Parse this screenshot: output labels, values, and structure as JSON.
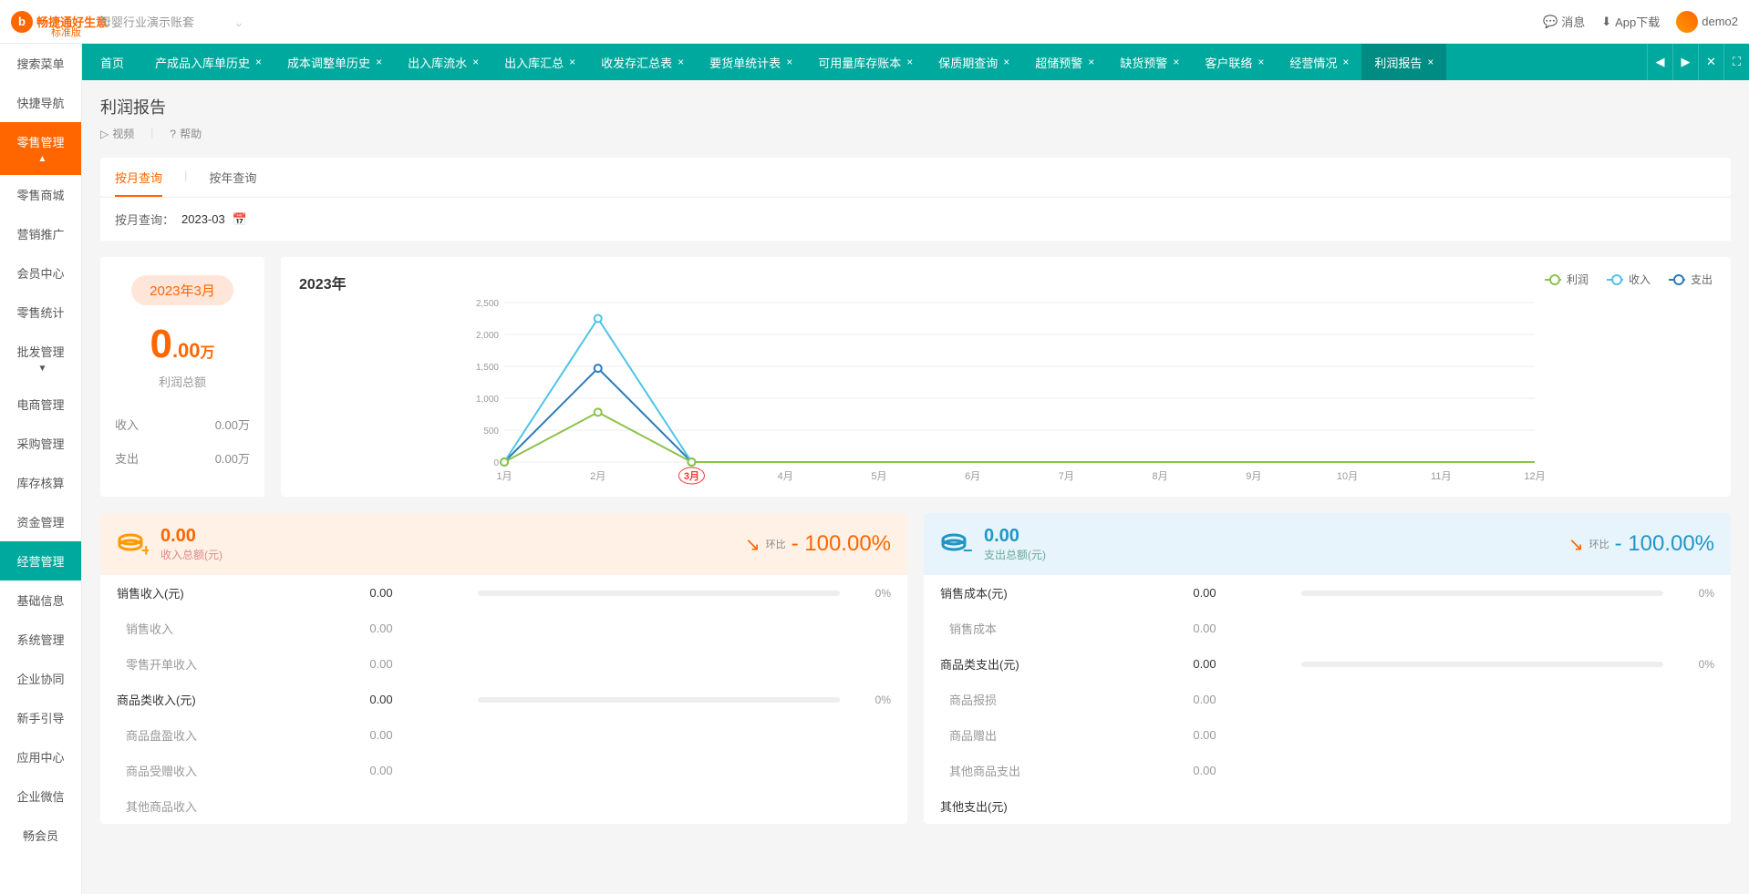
{
  "logo": {
    "brand": "畅捷通好生意",
    "sub": "标准版"
  },
  "account_select": "母婴行业演示账套",
  "top_actions": {
    "msg": "消息",
    "app": "App下载",
    "user": "demo2"
  },
  "sidebar": [
    {
      "label": "搜索菜单",
      "name": "search-menu"
    },
    {
      "label": "快捷导航",
      "name": "quick-nav"
    },
    {
      "label": "零售管理",
      "name": "retail",
      "active": true,
      "arrow": "▲"
    },
    {
      "label": "零售商城",
      "name": "retail-mall"
    },
    {
      "label": "营销推广",
      "name": "marketing"
    },
    {
      "label": "会员中心",
      "name": "members"
    },
    {
      "label": "零售统计",
      "name": "retail-stats"
    },
    {
      "label": "批发管理",
      "name": "wholesale",
      "arrow": "▼"
    },
    {
      "label": "电商管理",
      "name": "ecommerce"
    },
    {
      "label": "采购管理",
      "name": "purchase"
    },
    {
      "label": "库存核算",
      "name": "inventory"
    },
    {
      "label": "资金管理",
      "name": "finance"
    },
    {
      "label": "经营管理",
      "name": "ops",
      "highlight": true
    },
    {
      "label": "基础信息",
      "name": "basic"
    },
    {
      "label": "系统管理",
      "name": "system"
    },
    {
      "label": "企业协同",
      "name": "collab"
    },
    {
      "label": "新手引导",
      "name": "guide"
    },
    {
      "label": "应用中心",
      "name": "apps"
    },
    {
      "label": "企业微信",
      "name": "wechat"
    },
    {
      "label": "畅会员",
      "name": "vip"
    }
  ],
  "tabs": [
    {
      "label": "首页",
      "home": true
    },
    {
      "label": "产成品入库单历史"
    },
    {
      "label": "成本调整单历史"
    },
    {
      "label": "出入库流水"
    },
    {
      "label": "出入库汇总"
    },
    {
      "label": "收发存汇总表"
    },
    {
      "label": "要货单统计表"
    },
    {
      "label": "可用量库存账本"
    },
    {
      "label": "保质期查询"
    },
    {
      "label": "超储预警"
    },
    {
      "label": "缺货预警"
    },
    {
      "label": "客户联络"
    },
    {
      "label": "经营情况"
    },
    {
      "label": "利润报告",
      "active": true
    }
  ],
  "page": {
    "title": "利润报告",
    "video": "视频",
    "help": "帮助",
    "subtabs": {
      "by_month": "按月查询",
      "by_year": "按年查询"
    },
    "filter_label": "按月查询：",
    "filter_date": "2023-03"
  },
  "summary": {
    "period": "2023年3月",
    "big_int": "0",
    "big_dec": ".00",
    "big_unit": "万",
    "big_label": "利润总额",
    "income_label": "收入",
    "income_val": "0.00万",
    "expense_label": "支出",
    "expense_val": "0.00万"
  },
  "chart": {
    "title": "2023年",
    "legend": {
      "profit": "利润",
      "income": "收入",
      "expense": "支出"
    },
    "colors": {
      "profit": "#8bc34a",
      "income": "#4fc3e8",
      "expense": "#2b7bb9"
    },
    "x_labels": [
      "1月",
      "2月",
      "3月",
      "4月",
      "5月",
      "6月",
      "7月",
      "8月",
      "9月",
      "10月",
      "11月",
      "12月"
    ],
    "y_ticks": [
      0,
      500,
      1000,
      1500,
      2000,
      2500
    ],
    "series": {
      "profit": [
        0,
        780,
        0,
        0,
        0,
        0,
        0,
        0,
        0,
        0,
        0,
        0
      ],
      "income": [
        0,
        2250,
        0,
        0,
        0,
        0,
        0,
        0,
        0,
        0,
        0,
        0
      ],
      "expense": [
        0,
        1470,
        0,
        0,
        0,
        0,
        0,
        0,
        0,
        0,
        0,
        0
      ]
    },
    "highlight_x_index": 2
  },
  "totals": {
    "income": {
      "value": "0.00",
      "label": "收入总额(元)",
      "trend_label": "环比",
      "trend_value": "- 100.00%",
      "color": "#f60",
      "rows": [
        {
          "name": "销售收入(元)",
          "val": "0.00",
          "pct": "0%",
          "bar": true
        },
        {
          "name": "销售收入",
          "val": "0.00",
          "sub": true
        },
        {
          "name": "零售开单收入",
          "val": "0.00",
          "sub": true
        },
        {
          "name": "商品类收入(元)",
          "val": "0.00",
          "pct": "0%",
          "bar": true
        },
        {
          "name": "商品盘盈收入",
          "val": "0.00",
          "sub": true
        },
        {
          "name": "商品受赠收入",
          "val": "0.00",
          "sub": true
        },
        {
          "name": "其他商品收入",
          "val": "",
          "sub": true
        }
      ]
    },
    "expense": {
      "value": "0.00",
      "label": "支出总额(元)",
      "trend_label": "环比",
      "trend_value": "- 100.00%",
      "color": "#2196c4",
      "rows": [
        {
          "name": "销售成本(元)",
          "val": "0.00",
          "pct": "0%",
          "bar": true
        },
        {
          "name": "销售成本",
          "val": "0.00",
          "sub": true
        },
        {
          "name": "商品类支出(元)",
          "val": "0.00",
          "pct": "0%",
          "bar": true
        },
        {
          "name": "商品报损",
          "val": "0.00",
          "sub": true
        },
        {
          "name": "商品赠出",
          "val": "0.00",
          "sub": true
        },
        {
          "name": "其他商品支出",
          "val": "0.00",
          "sub": true
        },
        {
          "name": "其他支出(元)",
          "val": "",
          "sub": false
        }
      ]
    }
  }
}
